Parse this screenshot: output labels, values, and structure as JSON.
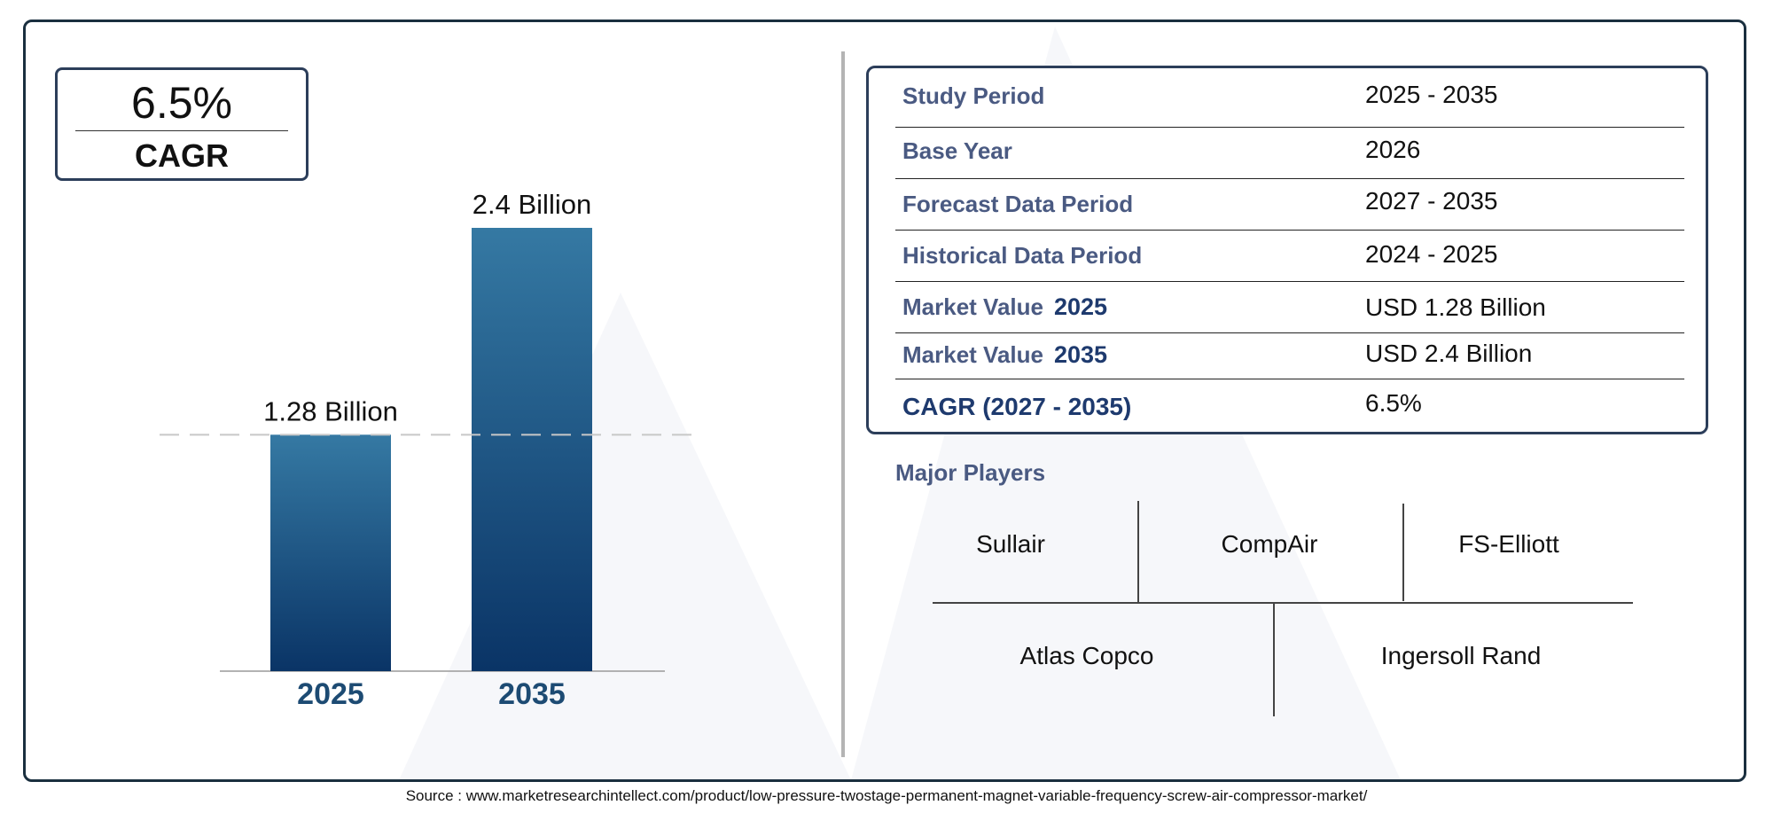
{
  "colors": {
    "bar_top": "#3579a3",
    "bar_bottom": "#0a3466",
    "accent": "#2c3e5a",
    "label": "#4a5a82",
    "label_strong": "#1e3a6e",
    "year_label": "#1d4b73"
  },
  "cagr_box": {
    "value": "6.5%",
    "label": "CAGR"
  },
  "chart_data": {
    "type": "bar",
    "categories": [
      "2025",
      "2035"
    ],
    "values": [
      1.28,
      2.4
    ],
    "data_labels": [
      "1.28 Billion",
      "2.4 Billion"
    ],
    "ylim": [
      0,
      2.4
    ],
    "grid": false,
    "reference_line": 1.28
  },
  "info": {
    "rows": [
      {
        "label": "Study Period",
        "value": "2025 - 2035"
      },
      {
        "label": "Base Year",
        "value": "2026"
      },
      {
        "label": "Forecast Data Period",
        "value": "2027 - 2035"
      },
      {
        "label": "Historical Data Period",
        "value": "2024 - 2025"
      },
      {
        "label": "Market Value",
        "year": "2025",
        "value": "USD 1.28 Billion"
      },
      {
        "label": "Market Value",
        "year": "2035",
        "value": "USD 2.4 Billion"
      },
      {
        "label": "CAGR (2027 - 2035)",
        "value": "6.5%"
      }
    ]
  },
  "players": {
    "title": "Major Players",
    "names": [
      "Sullair",
      "CompAir",
      "FS-Elliott",
      "Atlas Copco",
      "Ingersoll Rand"
    ]
  },
  "source": "Source : www.marketresearchintellect.com/product/low-pressure-twostage-permanent-magnet-variable-frequency-screw-air-compressor-market/"
}
